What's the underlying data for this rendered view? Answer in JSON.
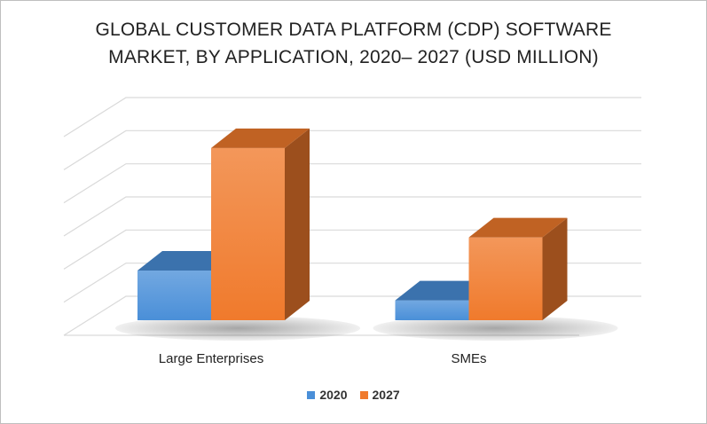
{
  "chart_data": {
    "type": "bar",
    "title_line1": "GLOBAL CUSTOMER DATA PLATFORM (CDP) SOFTWARE",
    "title_line2": "MARKET, BY APPLICATION, 2020– 2027 (USD MILLION)",
    "categories": [
      "Large Enterprises",
      "SMEs"
    ],
    "series": [
      {
        "name": "2020",
        "values": [
          1.5,
          0.6
        ],
        "color": "#4a8fd8"
      },
      {
        "name": "2027",
        "values": [
          5.2,
          2.5
        ],
        "color": "#f07a2c"
      }
    ],
    "ylim": [
      0,
      6
    ],
    "grid": true,
    "legend_position": "bottom"
  }
}
